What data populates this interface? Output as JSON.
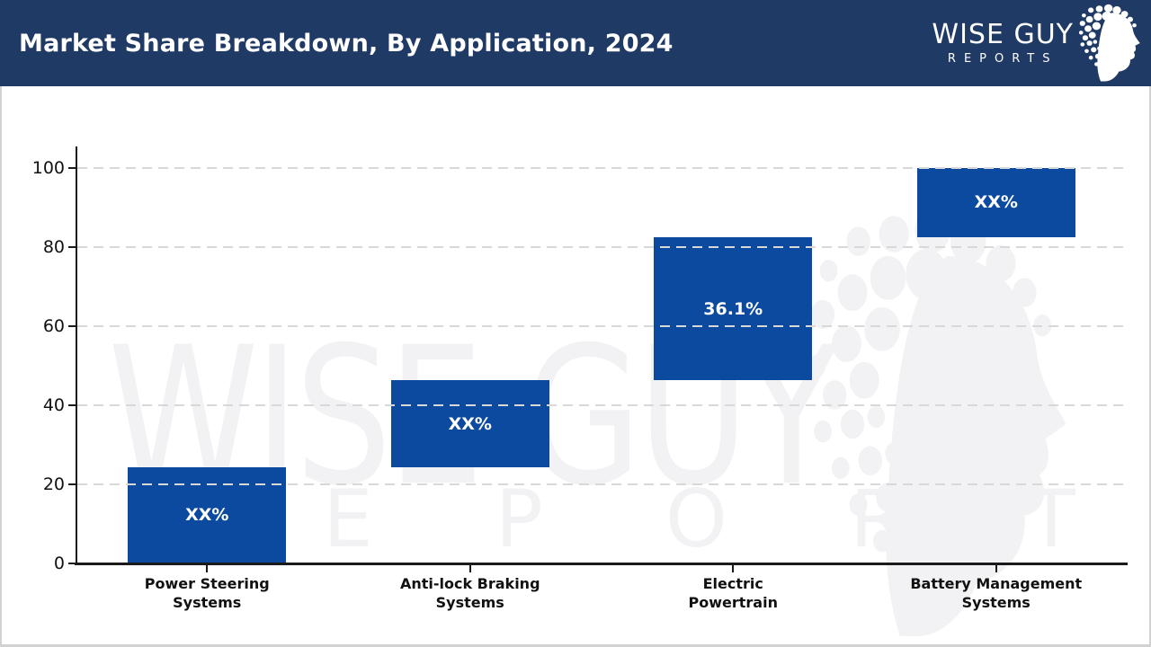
{
  "header": {
    "title": "Market Share Breakdown, By Application, 2024",
    "background_color": "#203a66",
    "logo": {
      "name": "WISE GUY",
      "sub": "REPORTS",
      "head_icon": "dotted-face-profile"
    }
  },
  "watermark": {
    "text_line1": "WISE GUY",
    "text_line2": "R E P O R T S",
    "color": "#f2f2f4"
  },
  "chart_data": {
    "type": "bar",
    "subtype": "waterfall",
    "title": "Market Share Breakdown, By Application, 2024",
    "xlabel": "",
    "ylabel": "",
    "ylim": [
      0,
      100
    ],
    "yticks": [
      0,
      20,
      40,
      60,
      80,
      100
    ],
    "grid": "horizontal-dashed",
    "legend": "none",
    "bar_color": "#0c4aa0",
    "bar_label_color": "#ffffff",
    "categories": [
      "Power Steering Systems",
      "Anti-lock Braking Systems",
      "Electric Powertrain",
      "Battery Management Systems"
    ],
    "category_lines": [
      [
        "Power Steering",
        "Systems"
      ],
      [
        "Anti-lock Braking",
        "Systems"
      ],
      [
        "Electric",
        "Powertrain"
      ],
      [
        "Battery Management",
        "Systems"
      ]
    ],
    "segments": [
      {
        "category": "Power Steering Systems",
        "start": 0,
        "end": 24.3,
        "height": 24.3,
        "label": "XX%"
      },
      {
        "category": "Anti-lock Braking Systems",
        "start": 24.4,
        "end": 46.2,
        "height": 21.8,
        "label": "XX%"
      },
      {
        "category": "Electric Powertrain",
        "start": 46.2,
        "end": 82.3,
        "height": 36.1,
        "label": "36.1%"
      },
      {
        "category": "Battery Management Systems",
        "start": 82.3,
        "end": 100,
        "height": 17.7,
        "label": "XX%"
      }
    ]
  }
}
